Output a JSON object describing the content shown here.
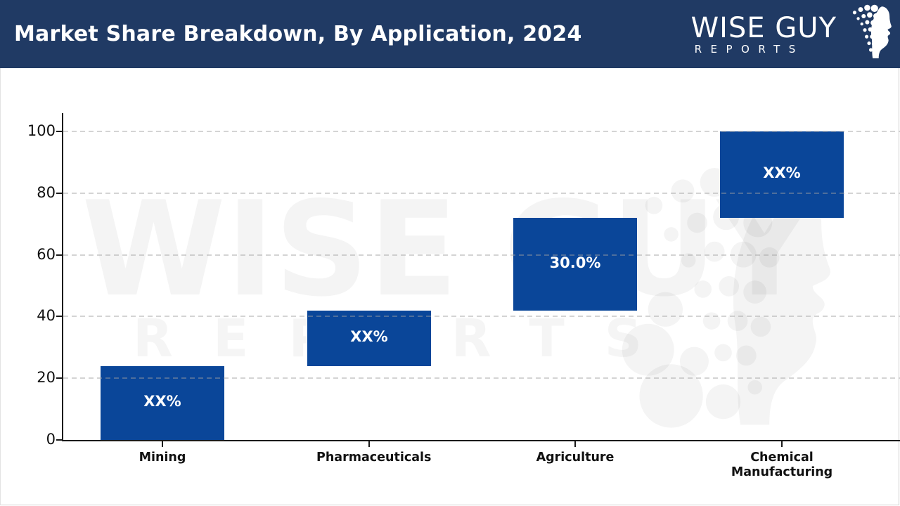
{
  "header": {
    "title": "Market Share Breakdown, By Application, 2024",
    "logo": {
      "line1": "WISE GUY",
      "line2": "REPORTS"
    }
  },
  "watermark": {
    "line1": "WISE GUY",
    "line2": "REPORTS"
  },
  "colors": {
    "header_bg": "#203a64",
    "bar": "#0a4699",
    "bar_label": "#ffffff",
    "grid": "#d9d9d9"
  },
  "chart_data": {
    "type": "bar",
    "subtype": "floating-segment (waterfall-style cumulative market share)",
    "title": "Market Share Breakdown, By Application, 2024",
    "categories": [
      "Mining",
      "Pharmaceuticals",
      "Agriculture",
      "Chemical Manufacturing"
    ],
    "segments": [
      {
        "category": "Mining",
        "start": 0,
        "end": 24,
        "label": "XX%"
      },
      {
        "category": "Pharmaceuticals",
        "start": 24,
        "end": 42,
        "label": "XX%"
      },
      {
        "category": "Agriculture",
        "start": 42,
        "end": 72,
        "label": "30.0%"
      },
      {
        "category": "Chemical Manufacturing",
        "start": 72,
        "end": 100,
        "label": "XX%"
      }
    ],
    "ylim": [
      0,
      100
    ],
    "yticks": [
      0,
      20,
      40,
      60,
      80,
      100
    ],
    "xlabel": "",
    "ylabel": "",
    "grid": "horizontal dashed, drawn over bars",
    "legend": "none"
  }
}
